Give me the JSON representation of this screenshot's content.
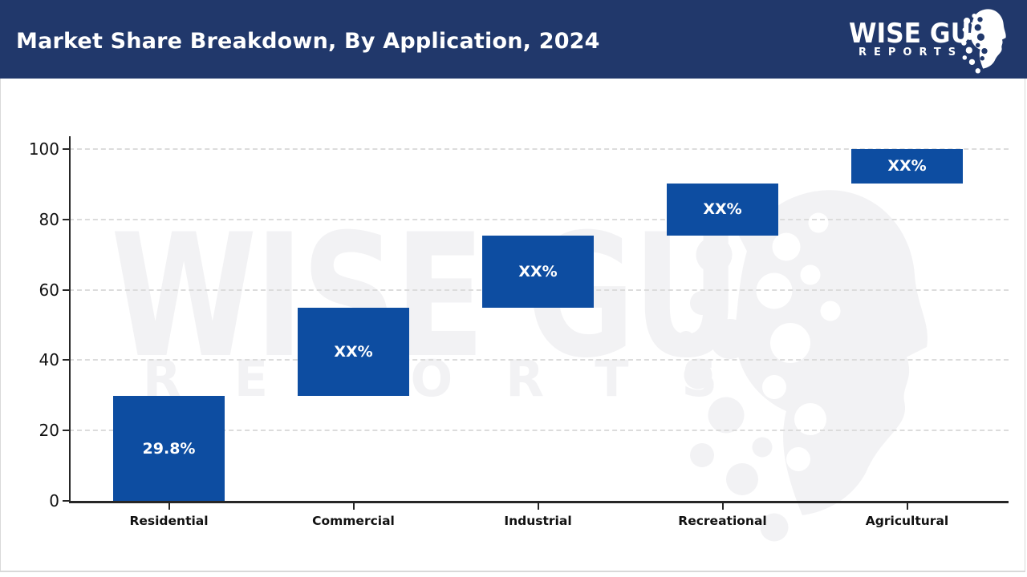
{
  "header": {
    "title": "Market Share Breakdown, By Application, 2024",
    "logo": {
      "line1": "WISE GUY",
      "line2": "REPORTS"
    }
  },
  "watermark": {
    "line1": "WISE GUY",
    "line2": "REPORTS"
  },
  "chart_data": {
    "type": "bar",
    "subtype": "waterfall-floating-bars",
    "title": "Market Share Breakdown, By Application, 2024",
    "categories": [
      "Residential",
      "Commercial",
      "Industrial",
      "Recreational",
      "Agricultural"
    ],
    "segments": [
      {
        "category": "Residential",
        "start": 0,
        "end": 29.8,
        "label": "29.8%"
      },
      {
        "category": "Commercial",
        "start": 29.8,
        "end": 55.0,
        "label": "XX%"
      },
      {
        "category": "Industrial",
        "start": 55.0,
        "end": 75.5,
        "label": "XX%"
      },
      {
        "category": "Recreational",
        "start": 75.5,
        "end": 90.3,
        "label": "XX%"
      },
      {
        "category": "Agricultural",
        "start": 90.3,
        "end": 100.0,
        "label": "XX%"
      }
    ],
    "yticks": [
      0,
      20,
      40,
      60,
      80,
      100
    ],
    "ylim": [
      0,
      104
    ],
    "xlabel": "",
    "ylabel": "",
    "grid": "horizontal-dashed",
    "legend": "none"
  },
  "colors": {
    "header_bg": "#21386b",
    "bar_fill": "#0d4da1",
    "bar_label": "#ffffff",
    "axis": "#262626",
    "tick_text": "#111111",
    "gridline": "#dcdcdc",
    "watermark": "#f2f2f4",
    "frame_border": "#d9d9d9"
  }
}
